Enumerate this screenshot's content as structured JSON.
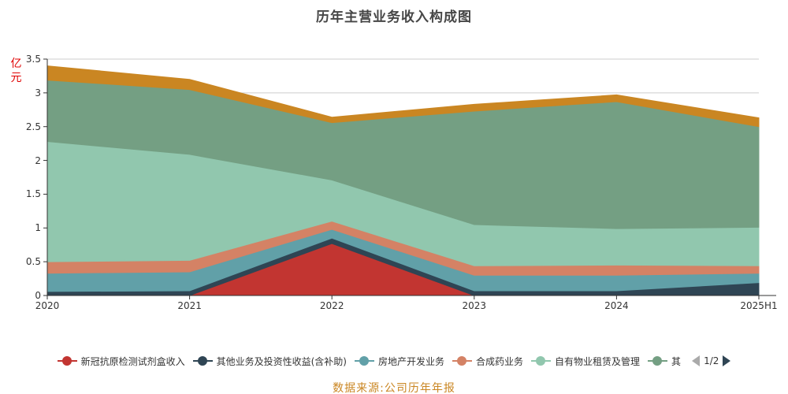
{
  "title": "历年主营业务收入构成图",
  "y_axis": {
    "name": "亿元",
    "name_color": "#e00000",
    "tick_labels": [
      "0",
      "0.5",
      "1",
      "1.5",
      "2",
      "2.5",
      "3",
      "3.5"
    ]
  },
  "x_axis": {
    "tick_labels": [
      "2020",
      "2021",
      "2022",
      "2023",
      "2024",
      "2025H1"
    ]
  },
  "legend": {
    "items": [
      {
        "label": "新冠抗原检测试剂盒收入",
        "color": "#c23531"
      },
      {
        "label": "其他业务及投资性收益(含补助)",
        "color": "#2f4554"
      },
      {
        "label": "房地产开发业务",
        "color": "#61a0a8"
      },
      {
        "label": "合成药业务",
        "color": "#d48265"
      },
      {
        "label": "自有物业租赁及管理",
        "color": "#91c7ae"
      },
      {
        "label": "其",
        "color": "#749f83"
      }
    ],
    "pager": {
      "page_text": "1/2",
      "prev_color": "#aaaaaa",
      "next_color": "#2f4554"
    }
  },
  "note": {
    "text": "数据来源:公司历年年报",
    "color": "#ca8622"
  },
  "style": {
    "grid_color": "#cccccc",
    "axis_color": "#333333",
    "label_color": "#333333"
  },
  "chart_data": {
    "type": "area",
    "stacked": true,
    "title": "历年主营业务收入构成图",
    "ylabel": "亿元",
    "ylim": [
      0,
      3.5
    ],
    "grid_step": 0.5,
    "grid": "on",
    "legend_position": "bottom",
    "legend_pages": "1/2",
    "categories": [
      "2020",
      "2021",
      "2022",
      "2023",
      "2024",
      "2025H1"
    ],
    "series": [
      {
        "name": "新冠抗原检测试剂盒收入",
        "color": "#c23531",
        "values": [
          0,
          0,
          0.77,
          0,
          0,
          0
        ]
      },
      {
        "name": "其他业务及投资性收益(含补助)",
        "color": "#2f4554",
        "values": [
          0.06,
          0.07,
          0.08,
          0.07,
          0.07,
          0.19
        ]
      },
      {
        "name": "房地产开发业务",
        "color": "#61a0a8",
        "values": [
          0.27,
          0.28,
          0.13,
          0.23,
          0.23,
          0.14
        ]
      },
      {
        "name": "合成药业务",
        "color": "#d48265",
        "values": [
          0.17,
          0.17,
          0.12,
          0.14,
          0.15,
          0.11
        ]
      },
      {
        "name": "自有物业租赁及管理",
        "color": "#91c7ae",
        "values": [
          1.78,
          1.57,
          0.61,
          0.61,
          0.54,
          0.57
        ]
      },
      {
        "name": "其",
        "color": "#749f83",
        "values": [
          0.91,
          0.96,
          0.85,
          1.68,
          1.88,
          1.49
        ]
      },
      {
        "name": "",
        "color": "#ca8622",
        "values": [
          0.21,
          0.15,
          0.08,
          0.1,
          0.1,
          0.13
        ]
      }
    ]
  }
}
